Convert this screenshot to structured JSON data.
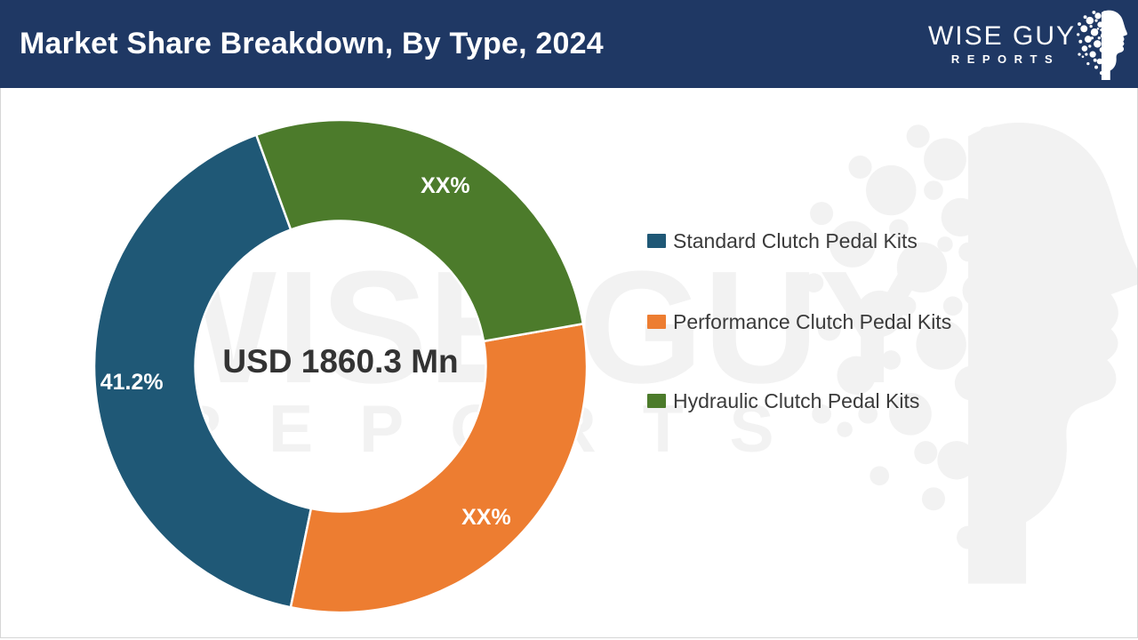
{
  "header": {
    "title": "Market Share Breakdown, By Type, 2024",
    "logo": {
      "line1": "WISE GUY",
      "line2": "REPORTS"
    }
  },
  "watermark": {
    "line1": "WISE GUY",
    "line2": "REPORTS"
  },
  "chart_data": {
    "type": "pie",
    "subtype": "donut",
    "title": "Market Share Breakdown, By Type, 2024",
    "center_label": "USD 1860.3 Mn",
    "start_angle_deg": 110,
    "counterclockwise": true,
    "inner_radius_ratio": 0.59,
    "slice_label_radius_ratio": 0.85,
    "legend_position": "right",
    "slice_gap_color": "#ffffff",
    "series": [
      {
        "name": "Standard Clutch Pedal Kits",
        "value": 41.2,
        "display_label": "41.2%",
        "color": "#1f5876"
      },
      {
        "name": "Performance Clutch Pedal Kits",
        "value": 31.0,
        "display_label": "XX%",
        "color": "#ed7d31"
      },
      {
        "name": "Hydraulic Clutch Pedal Kits",
        "value": 27.8,
        "display_label": "XX%",
        "color": "#4c7b2b"
      }
    ]
  }
}
